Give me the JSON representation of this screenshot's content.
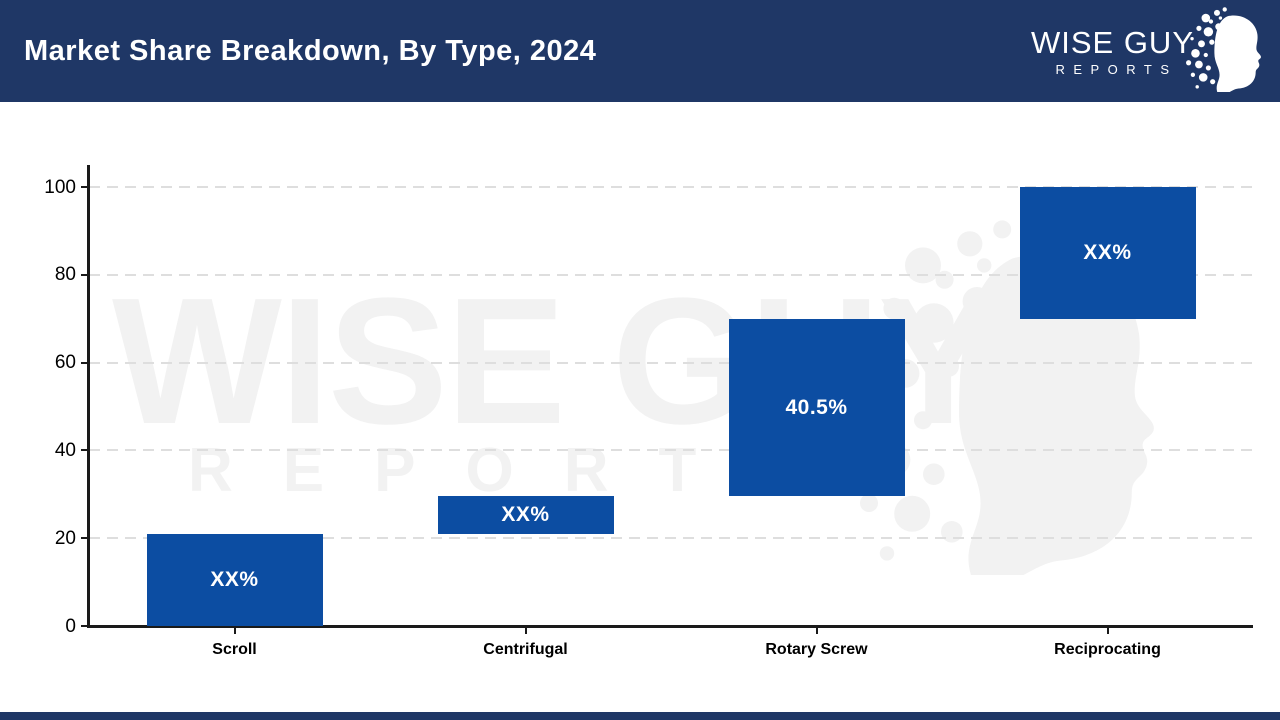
{
  "header": {
    "title": "Market Share Breakdown, By Type, 2024",
    "logo": {
      "line1": "WISE GUY",
      "line2": "REPORTS"
    }
  },
  "watermark": {
    "line1": "WISE GUY",
    "line2": "REPORTS"
  },
  "colors": {
    "header_bg": "#1f3766",
    "footer_bg": "#1f3766",
    "bar_fill": "#0c4da2",
    "bar_label_text": "#ffffff",
    "axis": "#1a1a1a",
    "gridline": "#dedede",
    "tick_label": "#000000",
    "watermark": "#f2f2f2"
  },
  "chart_data": {
    "type": "bar",
    "subtype": "floating-waterfall",
    "title": "Market Share Breakdown, By Type, 2024",
    "xlabel": "",
    "ylabel": "",
    "categories": [
      "Scroll",
      "Centrifugal",
      "Rotary Screw",
      "Reciprocating"
    ],
    "segments": [
      {
        "category": "Scroll",
        "start": 0,
        "end": 21,
        "value": 21,
        "label": "XX%"
      },
      {
        "category": "Centrifugal",
        "start": 21,
        "end": 29.5,
        "value": 8.5,
        "label": "XX%"
      },
      {
        "category": "Rotary Screw",
        "start": 29.5,
        "end": 70,
        "value": 40.5,
        "label": "40.5%"
      },
      {
        "category": "Reciprocating",
        "start": 70,
        "end": 100,
        "value": 30,
        "label": "XX%"
      }
    ],
    "yticks": [
      0,
      20,
      40,
      60,
      80,
      100
    ],
    "ylim": [
      0,
      105
    ],
    "grid": "horizontal-dashed",
    "legend": "none"
  }
}
